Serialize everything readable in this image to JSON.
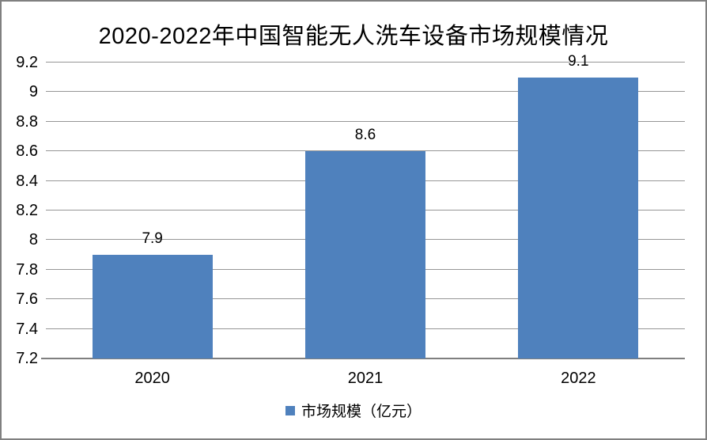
{
  "chart_data": {
    "type": "bar",
    "title": "2020-2022年中国智能无人洗车设备市场规模情况",
    "categories": [
      "2020",
      "2021",
      "2022"
    ],
    "series": [
      {
        "name": "市场规模（亿元）",
        "values": [
          7.9,
          8.6,
          9.1
        ]
      }
    ],
    "value_labels": [
      "7.9",
      "8.6",
      "9.1"
    ],
    "xlabel": "",
    "ylabel": "",
    "ylim": [
      7.2,
      9.2
    ],
    "ytick_step": 0.2,
    "ytick_labels": [
      "7.2",
      "7.4",
      "7.6",
      "7.8",
      "8",
      "8.2",
      "8.4",
      "8.6",
      "8.8",
      "9",
      "9.2"
    ],
    "grid": true,
    "legend_position": "bottom",
    "legend_label": "市场规模（亿元）",
    "colors": {
      "bar": "#4F81BD",
      "gridline": "#969696",
      "axis": "#7F7F7F",
      "frame_border": "#808080",
      "text": "#000000",
      "background": "#FFFFFF"
    }
  }
}
